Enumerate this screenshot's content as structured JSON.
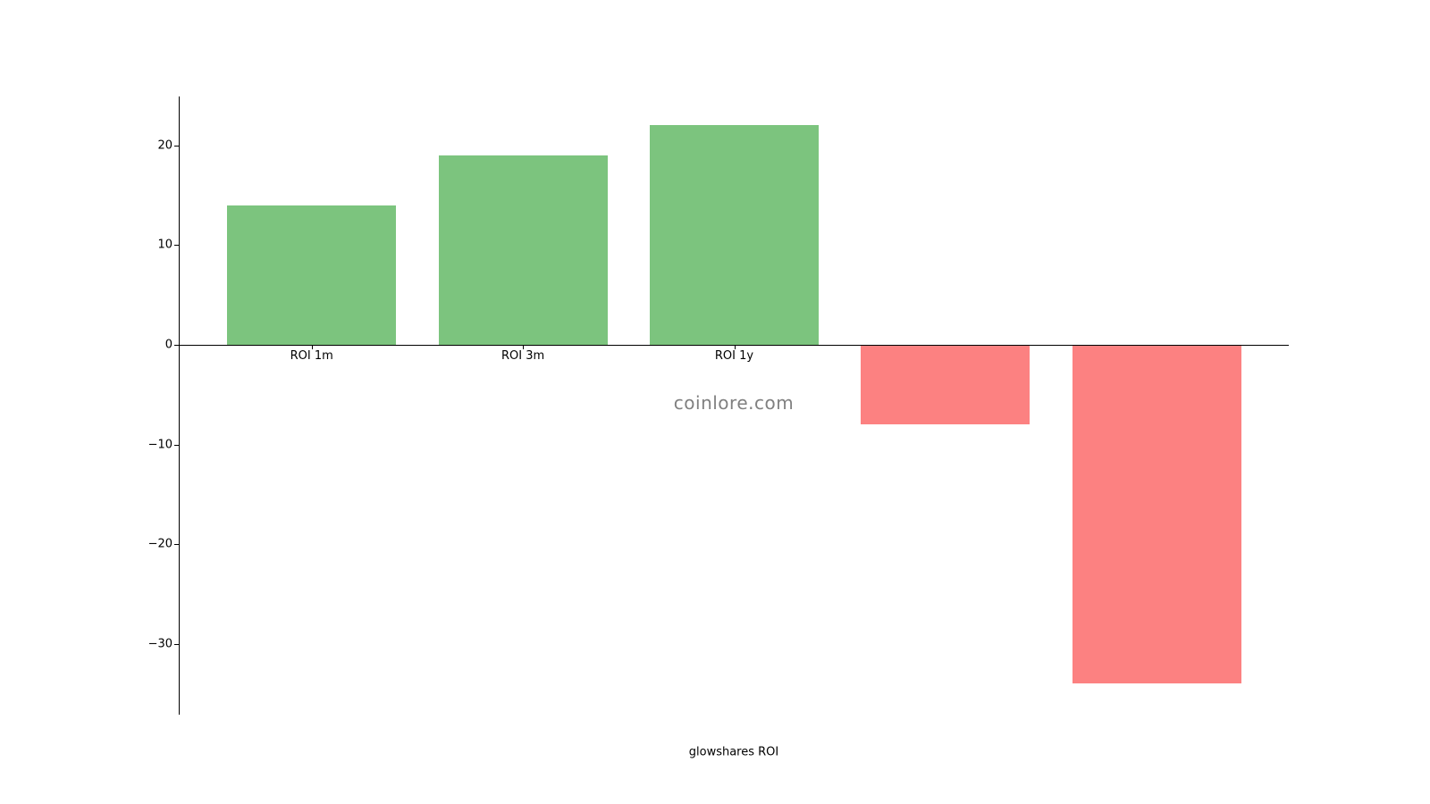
{
  "figure": {
    "watermark": "coinlore.com",
    "xlabel": "glowshares ROI"
  },
  "chart_data": {
    "type": "bar",
    "title": "",
    "xlabel": "glowshares ROI",
    "ylabel": "",
    "watermark": "coinlore.com",
    "categories": [
      "ROI 1m",
      "ROI 3m",
      "ROI 1y",
      "",
      ""
    ],
    "values": [
      14,
      19,
      22,
      -8,
      -34
    ],
    "positive_color": "#7cc47e",
    "negative_color": "#fc8181",
    "axis_color": "#000000",
    "watermark_color": "#808080",
    "yticks": [
      20,
      10,
      0,
      -10,
      -20,
      -30
    ],
    "ytick_labels": [
      "20",
      "10",
      "0",
      "−10",
      "−20",
      "−30"
    ],
    "ylim": [
      -37.1,
      24.9
    ],
    "xlim": [
      -0.625,
      4.625
    ],
    "bar_width_ratio": 0.8,
    "grid": false,
    "legend": null
  }
}
